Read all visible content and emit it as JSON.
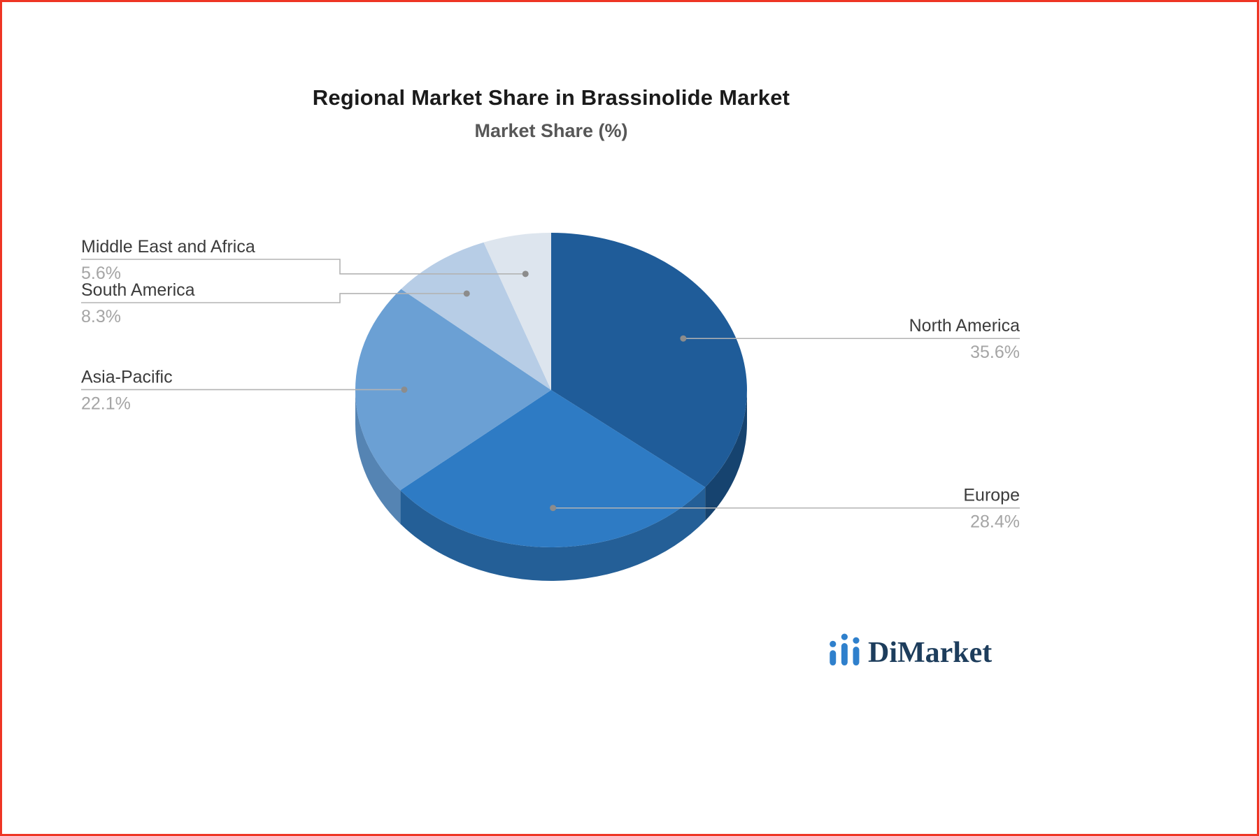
{
  "page": {
    "background": "#ffffff",
    "border_color": "#ee3524"
  },
  "chart_data": {
    "type": "pie",
    "style": "3d",
    "title": "Regional Market Share in Brassinolide Market",
    "subtitle": "Market Share (%)",
    "unit": "%",
    "labels": [
      "North America",
      "Europe",
      "Asia-Pacific",
      "South America",
      "Middle East and Africa"
    ],
    "values": [
      35.6,
      28.4,
      22.1,
      8.3,
      5.6
    ],
    "display_values": [
      "35.6%",
      "28.4%",
      "22.1%",
      "8.3%",
      "5.6%"
    ],
    "colors": [
      "#1f5c99",
      "#2e7bc4",
      "#6ba0d4",
      "#b7cde6",
      "#dde5ee"
    ],
    "side_colors": [
      "#16436f",
      "#245f97",
      "#5584b3",
      "#93a9c4",
      "#b9c3cf"
    ],
    "label_color": "#3c3c3c",
    "value_color": "#a5a5a5",
    "leader_line_color": "#b3b3b3",
    "leader_dot_color": "#8c8c8c",
    "legend_position": "callout-labels"
  },
  "branding": {
    "logo_text": "DiMarket",
    "logo_color": "#1d3d5c",
    "icon_color": "#2f80cc"
  }
}
